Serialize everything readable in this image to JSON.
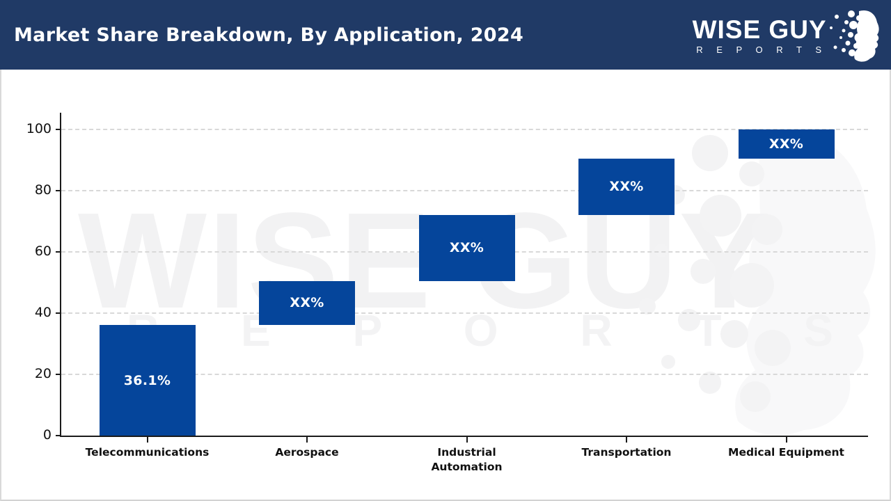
{
  "header": {
    "title": "Market Share Breakdown, By Application, 2024",
    "background": "#203A66",
    "logo": {
      "line1": "WISE GUY",
      "line2": "R E P O R T S"
    }
  },
  "watermark": {
    "line1": "WISE GUY",
    "line2": "R E P O R T S"
  },
  "chart_data": {
    "type": "bar",
    "subtype": "waterfall",
    "title": "Market Share Breakdown, By Application, 2024",
    "xlabel": "",
    "ylabel": "",
    "ylim": [
      0,
      105
    ],
    "yticks": [
      0,
      20,
      40,
      60,
      80,
      100
    ],
    "grid": "horizontal-dashed",
    "legend": "none",
    "bar_color": "#05459B",
    "value_label_color": "#FFFFFF",
    "categories": [
      "Telecommunications",
      "Aerospace",
      "Industrial Automation",
      "Transportation",
      "Medical Equipment"
    ],
    "category_lines": [
      [
        "Telecommunications"
      ],
      [
        "Aerospace"
      ],
      [
        "Industrial",
        "Automation"
      ],
      [
        "Transportation"
      ],
      [
        "Medical Equipment"
      ]
    ],
    "segments": [
      {
        "category": "Telecommunications",
        "start": 0,
        "end": 36.1,
        "value": 36.1,
        "label": "36.1%"
      },
      {
        "category": "Aerospace",
        "start": 36.1,
        "end": 50.5,
        "value": 14.4,
        "label": "XX%"
      },
      {
        "category": "Industrial Automation",
        "start": 50.5,
        "end": 72.1,
        "value": 21.6,
        "label": "XX%"
      },
      {
        "category": "Transportation",
        "start": 72.1,
        "end": 90.5,
        "value": 18.4,
        "label": "XX%"
      },
      {
        "category": "Medical Equipment",
        "start": 90.5,
        "end": 100,
        "value": 9.5,
        "label": "XX%"
      }
    ]
  }
}
